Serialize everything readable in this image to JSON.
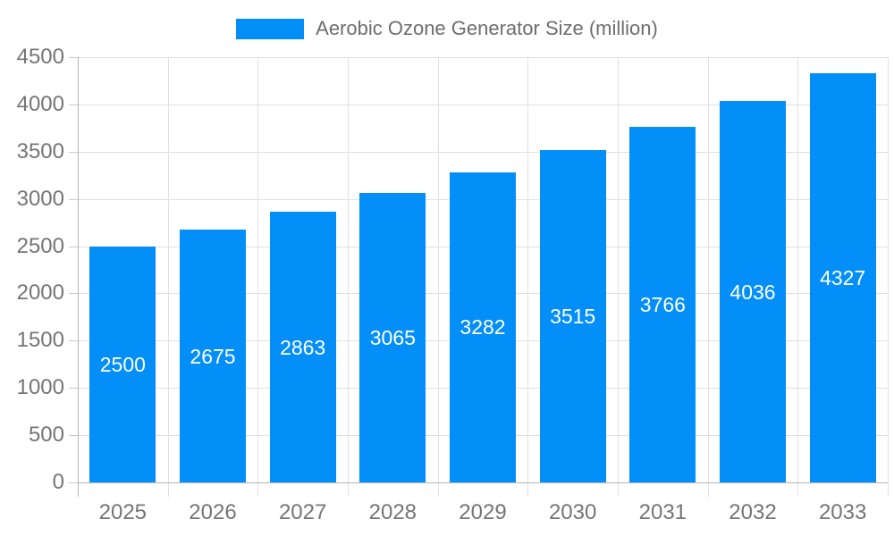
{
  "legend": {
    "label": "Aerobic Ozone Generator Size (million)"
  },
  "colors": {
    "bar": "#048FF8",
    "grid": "#e0e0e0",
    "axis": "#b6b6b6",
    "tick": "#c9c9c9",
    "axis_text": "#757575",
    "legend_text": "#6e6e6e",
    "bar_label_text": "#ffffff"
  },
  "chart_data": {
    "type": "bar",
    "title": "",
    "xlabel": "",
    "ylabel": "",
    "categories": [
      "2025",
      "2026",
      "2027",
      "2028",
      "2029",
      "2030",
      "2031",
      "2032",
      "2033"
    ],
    "series": [
      {
        "name": "Aerobic Ozone Generator Size (million)",
        "values": [
          2500,
          2675,
          2863,
          3065,
          3282,
          3515,
          3766,
          4036,
          4327
        ]
      }
    ],
    "yticks": [
      0,
      500,
      1000,
      1500,
      2000,
      2500,
      3000,
      3500,
      4000,
      4500
    ],
    "ylim": [
      0,
      4500
    ],
    "grid": true,
    "legend_position": "top",
    "bar_labels": true
  }
}
